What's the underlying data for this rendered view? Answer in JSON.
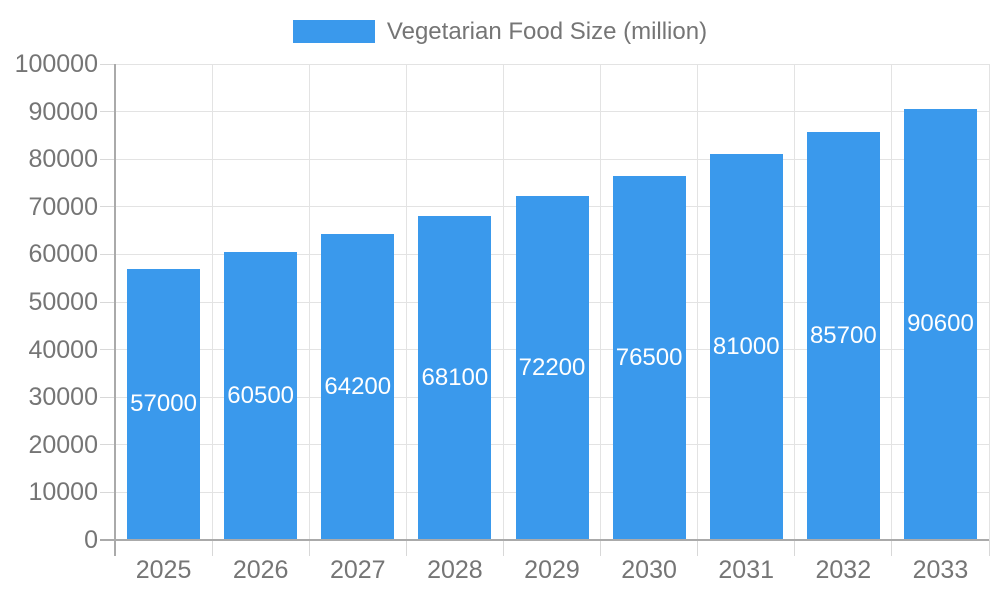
{
  "legend": {
    "label": "Vegetarian Food Size (million)"
  },
  "chart_data": {
    "type": "bar",
    "title": "Vegetarian Food Size (million)",
    "series_name": "Vegetarian Food Size (million)",
    "categories": [
      "2025",
      "2026",
      "2027",
      "2028",
      "2029",
      "2030",
      "2031",
      "2032",
      "2033"
    ],
    "values": [
      57000,
      60500,
      64200,
      68100,
      72200,
      76500,
      81000,
      85700,
      90600
    ],
    "xlabel": "",
    "ylabel": "",
    "ylim": [
      0,
      100000
    ],
    "yticks": [
      0,
      10000,
      20000,
      30000,
      40000,
      50000,
      60000,
      70000,
      80000,
      90000,
      100000
    ],
    "grid": true,
    "legend_position": "top-center",
    "value_label_position": "inside-middle"
  },
  "colors": {
    "bar": "#3A99EC",
    "axis_line": "#AAAAAA",
    "gridline": "#E3E3E3",
    "tick": "#D8D8D8",
    "axis_label": "#757575",
    "value_label": "#FFFFFF",
    "background": "#FFFFFF"
  }
}
